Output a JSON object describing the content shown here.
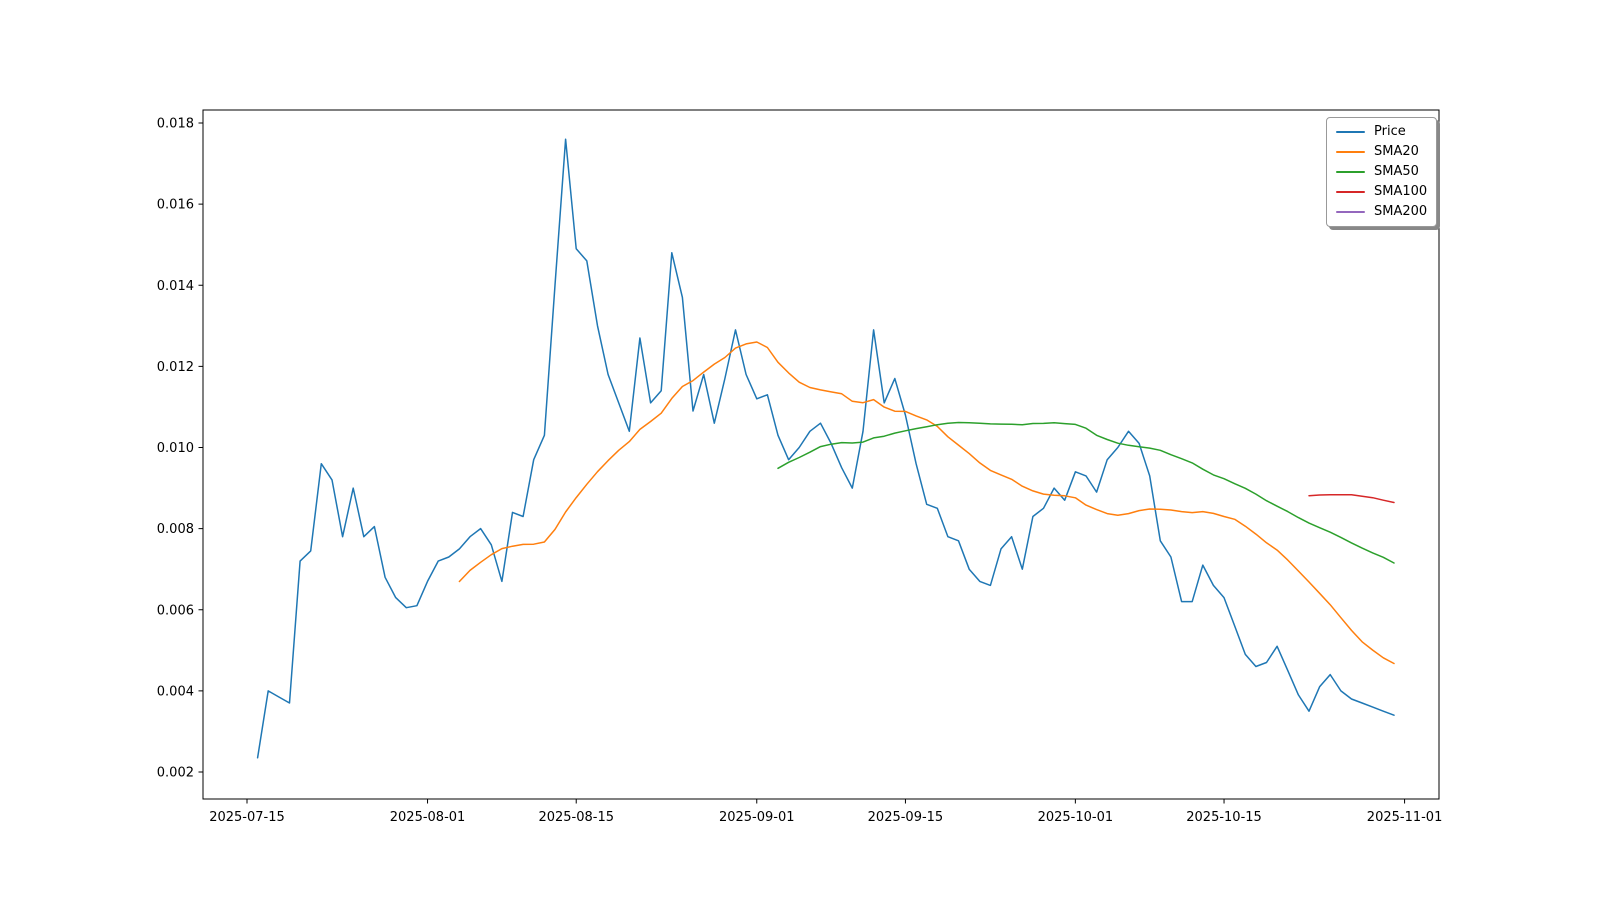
{
  "figure": {
    "background": "#ffffff",
    "axis_color": "#000000",
    "tick_label_color": "#000000"
  },
  "legend": {
    "position": "upper right",
    "items": [
      {
        "label": "Price",
        "color": "#1f77b4"
      },
      {
        "label": "SMA20",
        "color": "#ff7f0e"
      },
      {
        "label": "SMA50",
        "color": "#2ca02c"
      },
      {
        "label": "SMA100",
        "color": "#d62728"
      },
      {
        "label": "SMA200",
        "color": "#9467bd"
      }
    ]
  },
  "chart_data": {
    "type": "line",
    "title": "",
    "xlabel": "",
    "ylabel": "",
    "grid": false,
    "legend_position": "upper right",
    "ylim": [
      0.0013,
      0.0185
    ],
    "xlim": [
      "2025-07-10",
      "2025-11-04"
    ],
    "x_axis_anchor_date": "2025-07-15",
    "x_tick_labels": [
      "2025-07-15",
      "2025-08-01",
      "2025-08-15",
      "2025-09-01",
      "2025-09-15",
      "2025-10-01",
      "2025-10-15",
      "2025-11-01"
    ],
    "y_tick_labels": [
      "0.002",
      "0.004",
      "0.006",
      "0.008",
      "0.010",
      "0.012",
      "0.014",
      "0.016",
      "0.018"
    ],
    "series": [
      {
        "name": "Price",
        "color": "#1f77b4",
        "kind": "raw",
        "start_date": "2025-07-16",
        "interval": "daily",
        "values": [
          0.00235,
          0.004,
          0.00385,
          0.0037,
          0.0072,
          0.00745,
          0.0096,
          0.0092,
          0.0078,
          0.009,
          0.0078,
          0.00805,
          0.0068,
          0.0063,
          0.00605,
          0.0061,
          0.0067,
          0.0072,
          0.0073,
          0.0075,
          0.0078,
          0.008,
          0.0076,
          0.0067,
          0.0084,
          0.0083,
          0.0097,
          0.0103,
          0.014,
          0.0176,
          0.0149,
          0.0146,
          0.013,
          0.0118,
          0.0111,
          0.0104,
          0.0127,
          0.0111,
          0.0114,
          0.0148,
          0.0137,
          0.0109,
          0.0118,
          0.0106,
          0.0117,
          0.0129,
          0.0118,
          0.0112,
          0.0113,
          0.0103,
          0.0097,
          0.01,
          0.0104,
          0.0106,
          0.0101,
          0.0095,
          0.009,
          0.0104,
          0.0129,
          0.0111,
          0.0117,
          0.0108,
          0.0096,
          0.0086,
          0.0085,
          0.0078,
          0.0077,
          0.007,
          0.0067,
          0.0066,
          0.0075,
          0.0078,
          0.007,
          0.0083,
          0.0085,
          0.009,
          0.0087,
          0.0094,
          0.0093,
          0.0089,
          0.0097,
          0.01,
          0.0104,
          0.0101,
          0.0093,
          0.0077,
          0.0073,
          0.0062,
          0.0062,
          0.0071,
          0.0066,
          0.0063,
          0.0056,
          0.0049,
          0.0046,
          0.0047,
          0.0051,
          0.0045,
          0.0039,
          0.0035,
          0.0041,
          0.0044,
          0.004,
          0.0038,
          0.0037,
          0.0036,
          0.0035,
          0.0034
        ]
      },
      {
        "name": "SMA20",
        "color": "#ff7f0e",
        "kind": "sma",
        "window": 20,
        "derived_from": "Price rolling mean"
      },
      {
        "name": "SMA50",
        "color": "#2ca02c",
        "kind": "sma",
        "window": 50,
        "derived_from": "Price rolling mean"
      },
      {
        "name": "SMA100",
        "color": "#d62728",
        "kind": "sma",
        "window": 100,
        "derived_from": "Price rolling mean"
      },
      {
        "name": "SMA200",
        "color": "#9467bd",
        "kind": "sma",
        "window": 200,
        "derived_from": "Price rolling mean (not enough data, no line drawn)"
      }
    ]
  }
}
